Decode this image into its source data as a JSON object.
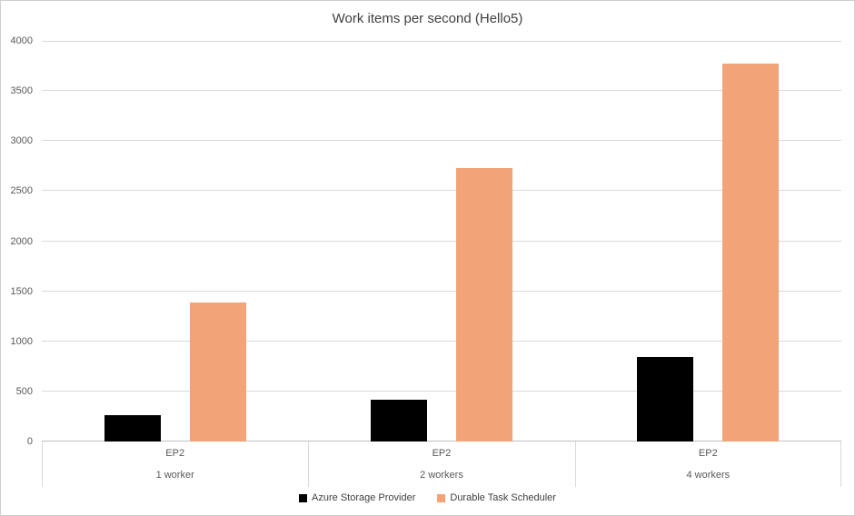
{
  "chart_data": {
    "type": "bar",
    "title": "Work items per second (Hello5)",
    "categories": [
      "EP2",
      "EP2",
      "EP2"
    ],
    "subcategories": [
      "1 worker",
      "2 workers",
      "4 workers"
    ],
    "series": [
      {
        "name": "Azure Storage Provider",
        "color": "#000000",
        "values": [
          260,
          420,
          840
        ]
      },
      {
        "name": "Durable Task Scheduler",
        "color": "#F2A377",
        "values": [
          1390,
          2730,
          3770
        ]
      }
    ],
    "ylim": [
      0,
      4000
    ],
    "ytick_step": 500,
    "yticks": [
      0,
      500,
      1000,
      1500,
      2000,
      2500,
      3000,
      3500,
      4000
    ],
    "xlabel": "",
    "ylabel": "",
    "grid": true,
    "legend_position": "bottom"
  },
  "colors": {
    "gridline": "#d9d9d9",
    "axis_line": "#bfbfbf",
    "axis_text": "#595959",
    "title_text": "#404040",
    "background": "#ffffff"
  }
}
